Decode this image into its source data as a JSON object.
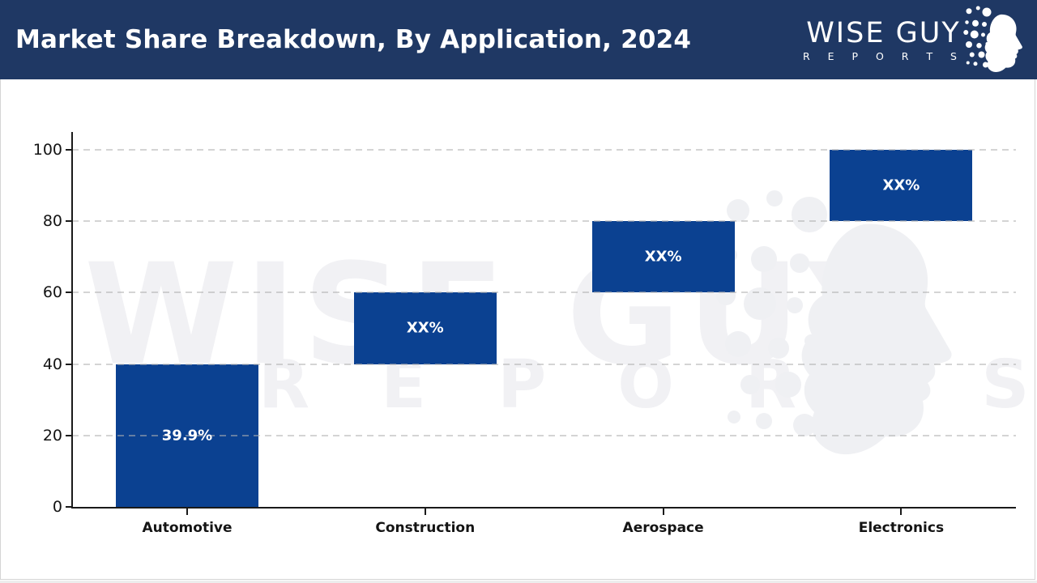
{
  "header": {
    "title": "Market Share Breakdown, By Application, 2024",
    "logo": {
      "line1": "WISE GUY",
      "line2": "R E P O R T S",
      "face_icon": "dotted-head-profile"
    }
  },
  "watermark": {
    "line1": "WISE GUY",
    "line2": "REPORTS",
    "face_icon": "dotted-head-profile"
  },
  "chart_data": {
    "type": "bar",
    "variant": "waterfall",
    "title": "Market Share Breakdown, By Application, 2024",
    "xlabel": "",
    "ylabel": "",
    "categories": [
      "Automotive",
      "Construction",
      "Aerospace",
      "Electronics"
    ],
    "segments": [
      {
        "category": "Automotive",
        "start": 0,
        "end": 39.9,
        "label": "39.9%"
      },
      {
        "category": "Construction",
        "start": 40,
        "end": 60,
        "label": "XX%"
      },
      {
        "category": "Aerospace",
        "start": 60,
        "end": 80,
        "label": "XX%"
      },
      {
        "category": "Electronics",
        "start": 80,
        "end": 100,
        "label": "XX%"
      }
    ],
    "yticks": [
      0,
      20,
      40,
      60,
      80,
      100
    ],
    "ylim": [
      0,
      105
    ],
    "grid": "horizontal dashed, drawn over bars",
    "legend": "none",
    "colors": {
      "bar": "#0B4191",
      "bar_label": "#ffffff",
      "axis": "#1a1a1a",
      "header_background": "#1F3864",
      "header_text": "#ffffff",
      "watermark": "#f1f1f4"
    }
  }
}
